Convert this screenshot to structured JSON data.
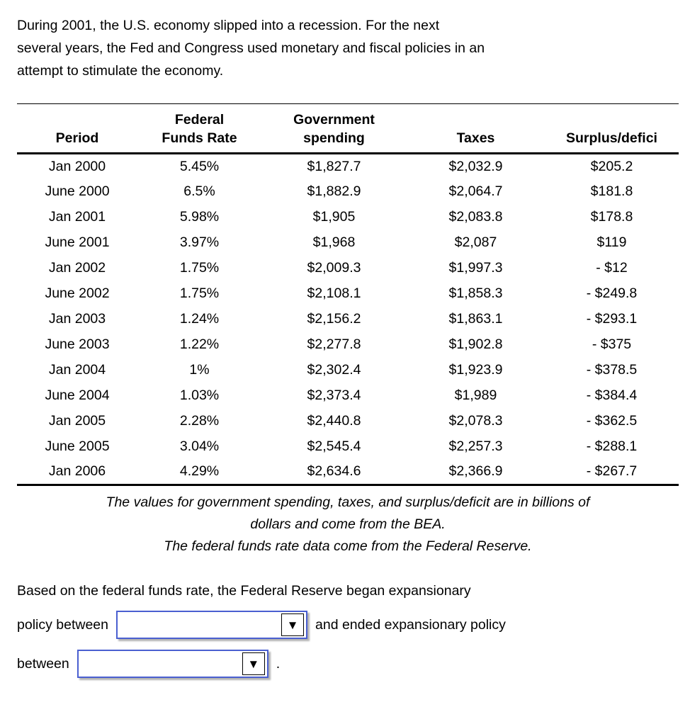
{
  "intro": {
    "lines": [
      "During 2001, the U.S. economy slipped into a recession. For the next",
      "several years, the Fed and Congress used monetary and fiscal policies in an",
      "attempt to stimulate the economy."
    ]
  },
  "table": {
    "headers": {
      "period": [
        "Period"
      ],
      "ffr": [
        "Federal",
        "Funds Rate"
      ],
      "gov": [
        "Government",
        "spending"
      ],
      "taxes": [
        "Taxes"
      ],
      "surplus": [
        "Surplus/defici"
      ]
    },
    "rows": [
      [
        "Jan 2000",
        "5.45%",
        "$1,827.7",
        "$2,032.9",
        "$205.2"
      ],
      [
        "June 2000",
        "6.5%",
        "$1,882.9",
        "$2,064.7",
        "$181.8"
      ],
      [
        "Jan 2001",
        "5.98%",
        "$1,905",
        "$2,083.8",
        "$178.8"
      ],
      [
        "June 2001",
        "3.97%",
        "$1,968",
        "$2,087",
        "$119"
      ],
      [
        "Jan 2002",
        "1.75%",
        "$2,009.3",
        "$1,997.3",
        "- $12"
      ],
      [
        "June 2002",
        "1.75%",
        "$2,108.1",
        "$1,858.3",
        "- $249.8"
      ],
      [
        "Jan 2003",
        "1.24%",
        "$2,156.2",
        "$1,863.1",
        "- $293.1"
      ],
      [
        "June 2003",
        "1.22%",
        "$2,277.8",
        "$1,902.8",
        "- $375"
      ],
      [
        "Jan 2004",
        "1%",
        "$2,302.4",
        "$1,923.9",
        "- $378.5"
      ],
      [
        "June 2004",
        "1.03%",
        "$2,373.4",
        "$1,989",
        "- $384.4"
      ],
      [
        "Jan 2005",
        "2.28%",
        "$2,440.8",
        "$2,078.3",
        "- $362.5"
      ],
      [
        "June 2005",
        "3.04%",
        "$2,545.4",
        "$2,257.3",
        "- $288.1"
      ],
      [
        "Jan 2006",
        "4.29%",
        "$2,634.6",
        "$2,366.9",
        "- $267.7"
      ]
    ]
  },
  "footnote": {
    "lines": [
      "The values for government spending, taxes, and surplus/deficit are in billions of",
      "dollars and come from the BEA.",
      "The federal funds rate data come from the Federal Reserve."
    ]
  },
  "question": {
    "line1": "Based on the federal funds rate, the Federal Reserve began expansionary",
    "label_policy_between": "policy between",
    "label_and_ended": "and ended expansionary policy",
    "label_between": "between",
    "label_period": ".",
    "dropdown_arrow": "▼",
    "dropdowns": [
      {
        "value": ""
      },
      {
        "value": ""
      }
    ]
  },
  "colors": {
    "background": "#ffffff",
    "text": "#000000",
    "dropdown_border": "#4a5fd0"
  }
}
